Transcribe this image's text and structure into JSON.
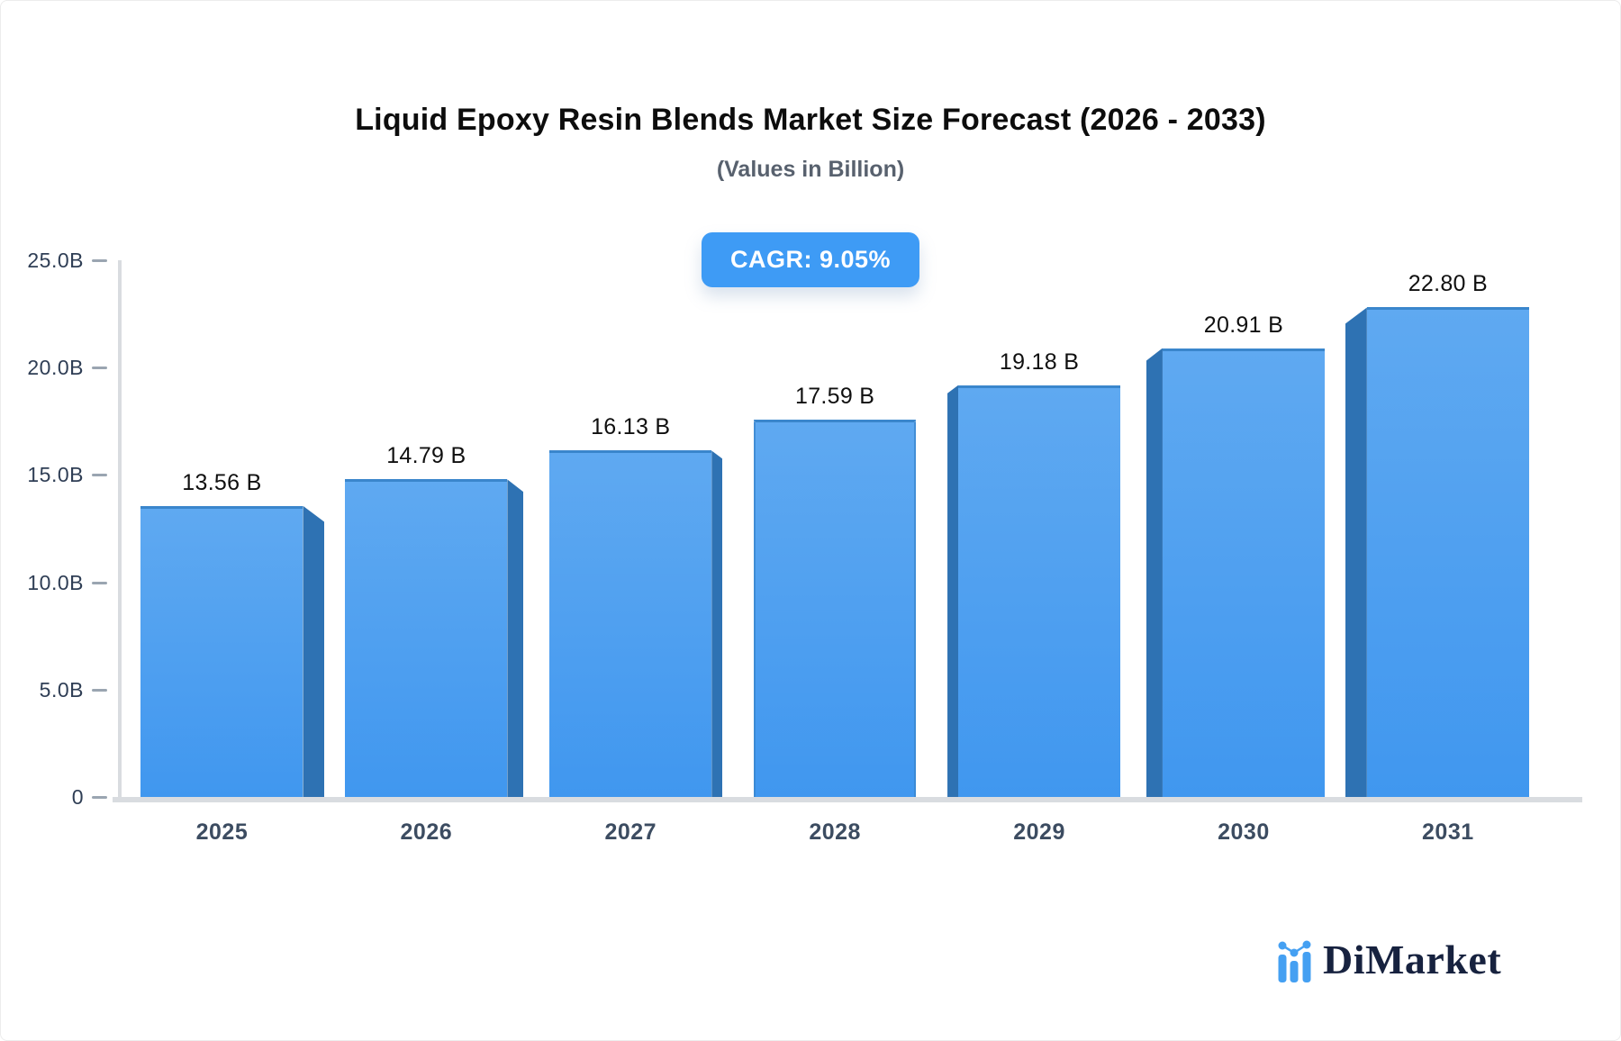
{
  "header": {
    "title": "Liquid Epoxy Resin Blends Market Size Forecast (2026 - 2033)",
    "subtitle": "(Values in Billion)"
  },
  "badge": {
    "label": "CAGR: 9.05%",
    "bg": "#3E9BF5",
    "text_color": "#FFFFFF"
  },
  "chart_data": {
    "type": "bar",
    "title": "Liquid Epoxy Resin Blends Market Size Forecast (2026 - 2033)",
    "subtitle": "(Values in Billion)",
    "categories": [
      "2025",
      "2026",
      "2027",
      "2028",
      "2029",
      "2030",
      "2031"
    ],
    "values": [
      13.56,
      14.79,
      16.13,
      17.59,
      19.18,
      20.91,
      22.8
    ],
    "value_labels": [
      "13.56 B",
      "14.79 B",
      "16.13 B",
      "17.59 B",
      "19.18 B",
      "20.91 B",
      "22.80 B"
    ],
    "xlabel": "",
    "ylabel": "",
    "ylim": [
      0,
      25
    ],
    "yticks": {
      "values": [
        0,
        5,
        10,
        15,
        20,
        25
      ],
      "labels": [
        "0",
        "5.0B",
        "10.0B",
        "15.0B",
        "20.0B",
        "25.0B"
      ]
    },
    "grid": false,
    "legend": "none",
    "bar_style": "3d-perspective-extrusion",
    "colors": {
      "bar_face_top": "#5FA9F1",
      "bar_face_bottom": "#4097EF",
      "bar_side": "#2E72B3",
      "bar_top_edge": "#3A86CC",
      "axis_line": "#D9DCE0",
      "tick_mark": "#9AA5B1",
      "tick_label": "#2F3E55",
      "x_label": "#3C4C61",
      "value_label": "#101010"
    }
  },
  "branding": {
    "name": "DiMarket",
    "text_color": "#17223F",
    "icon": "mini-bar-chart-with-dots-icon",
    "icon_color": "#45A0F2"
  }
}
